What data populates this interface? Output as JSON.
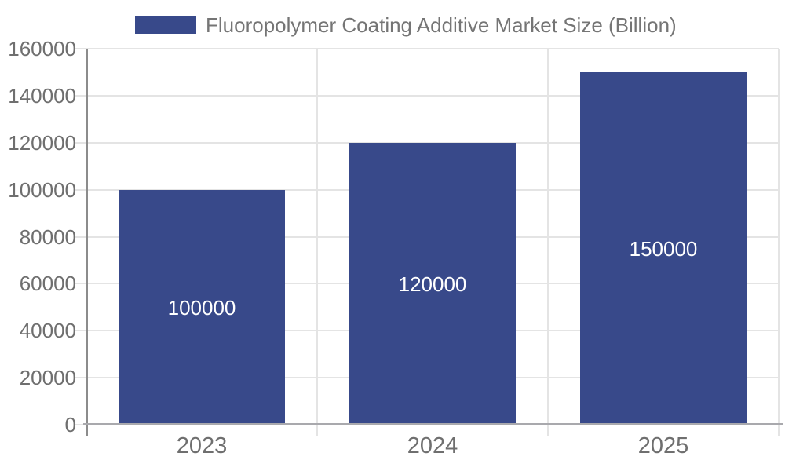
{
  "legend": {
    "label": "Fluoropolymer Coating Additive Market Size (Billion)",
    "swatch_color": "#38498a"
  },
  "chart_data": {
    "type": "bar",
    "title": "Fluoropolymer Coating Additive Market Size (Billion)",
    "categories": [
      "2023",
      "2024",
      "2025"
    ],
    "values": [
      100000,
      120000,
      150000
    ],
    "bar_labels": [
      "100000",
      "120000",
      "150000"
    ],
    "series": [
      {
        "name": "Fluoropolymer Coating Additive Market Size (Billion)",
        "values": [
          100000,
          120000,
          150000
        ]
      }
    ],
    "xlabel": "",
    "ylabel": "",
    "ylim": [
      0,
      160000
    ],
    "ytick_step": 20000,
    "ytick_labels": [
      "0",
      "20000",
      "40000",
      "60000",
      "80000",
      "100000",
      "120000",
      "140000",
      "160000"
    ],
    "grid": true,
    "legend_position": "top",
    "bar_color": "#38498a",
    "bar_label_color": "#ffffff"
  },
  "colors": {
    "bar": "#38498a",
    "gridline": "#e4e4e4",
    "y_axis_line": "#8c8c8c",
    "x_axis_line": "#a9a9ad",
    "tick_label": "#6f6f6f",
    "legend_text": "#757575",
    "background": "#ffffff"
  }
}
